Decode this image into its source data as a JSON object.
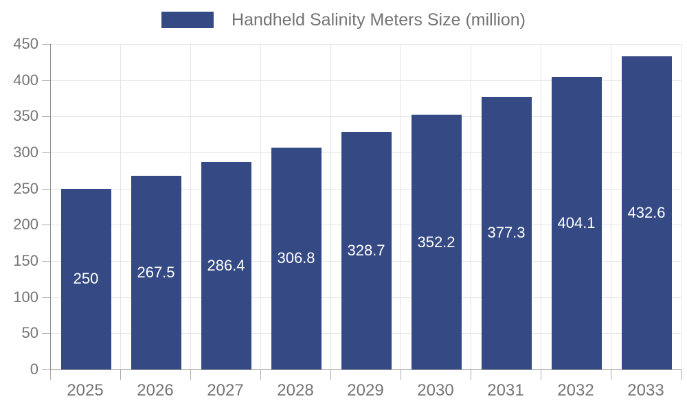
{
  "chart_data": {
    "type": "bar",
    "title": "Handheld Salinity Meters Size (million)",
    "legend": [
      "Handheld Salinity Meters Size (million)"
    ],
    "legend_position": "top-center",
    "categories": [
      "2025",
      "2026",
      "2027",
      "2028",
      "2029",
      "2030",
      "2031",
      "2032",
      "2033"
    ],
    "series": [
      {
        "name": "Handheld Salinity Meters Size (million)",
        "values": [
          250,
          267.5,
          286.4,
          306.8,
          328.7,
          352.2,
          377.3,
          404.1,
          432.6
        ]
      }
    ],
    "value_labels": [
      "250",
      "267.5",
      "286.4",
      "306.8",
      "328.7",
      "352.2",
      "377.3",
      "404.1",
      "432.6"
    ],
    "xlabel": "",
    "ylabel": "",
    "ylim": [
      0,
      450
    ],
    "yticks": [
      0,
      50,
      100,
      150,
      200,
      250,
      300,
      350,
      400,
      450
    ],
    "grid": true,
    "colors": {
      "bar": "#354a84",
      "bar_label": "#ffffff",
      "grid_line": "#e4e4e4",
      "axis_line": "#9a9a9a",
      "tick_mark": "#aaaaaa",
      "axis_text": "#757575",
      "title_text": "#747474"
    }
  }
}
